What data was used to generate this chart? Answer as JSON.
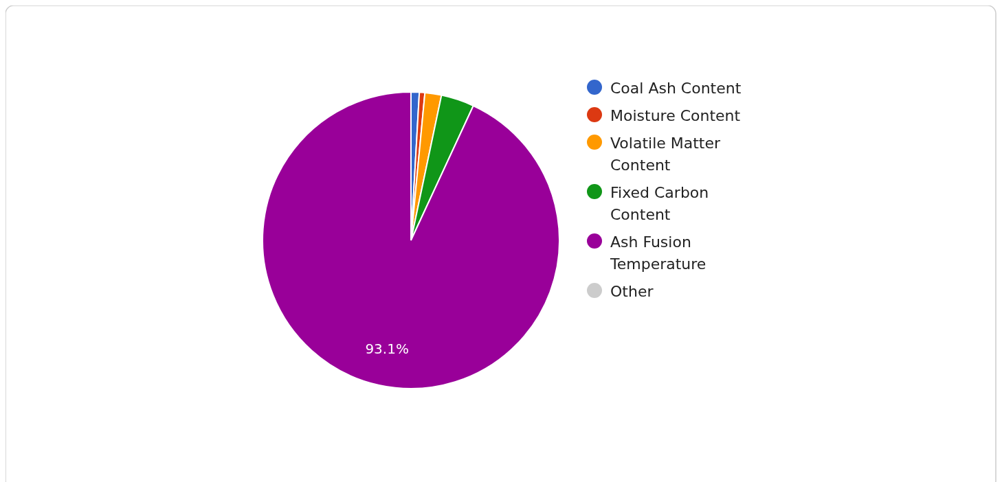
{
  "chart_data": {
    "type": "pie",
    "categories": [
      "Coal Ash Content",
      "Moisture Content",
      "Volatile Matter Content",
      "Fixed Carbon Content",
      "Ash Fusion Temperature",
      "Other"
    ],
    "values": [
      0.9,
      0.6,
      1.8,
      3.6,
      93.1,
      0
    ],
    "colors": [
      "#3366cc",
      "#dc3912",
      "#ff9900",
      "#109618",
      "#990099",
      "#cccccc"
    ],
    "value_labels": [
      null,
      null,
      null,
      null,
      "93.1%",
      null
    ],
    "legend": "right"
  }
}
